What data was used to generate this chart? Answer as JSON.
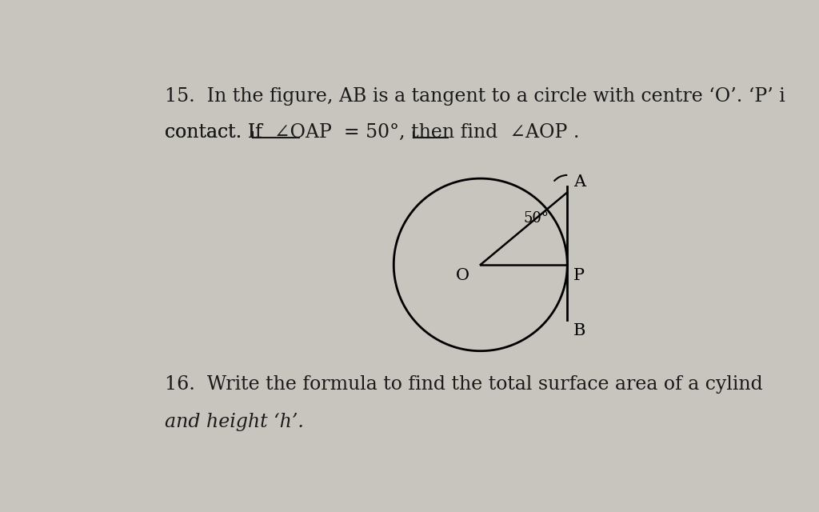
{
  "bg_color": "#c8c4be",
  "text_color": "#1a1a1a",
  "fig_width": 10.24,
  "fig_height": 6.4,
  "line1": "15.  In the figure, AB is a tangent to a circle with centre ‘O’. ‘P’ i",
  "line2_pre": "contact. If ",
  "line2_angle1": "OAP",
  "line2_mid": " = 50°, then find ",
  "line2_angle2": "AOP",
  "line2_post": ".",
  "line3": "16.  Write the formula to find the total surface area of a cylind",
  "line4": "and height ‘h’.",
  "O_label": "O",
  "P_label": "P",
  "A_label": "A",
  "B_label": "B",
  "angle_label": "50°"
}
